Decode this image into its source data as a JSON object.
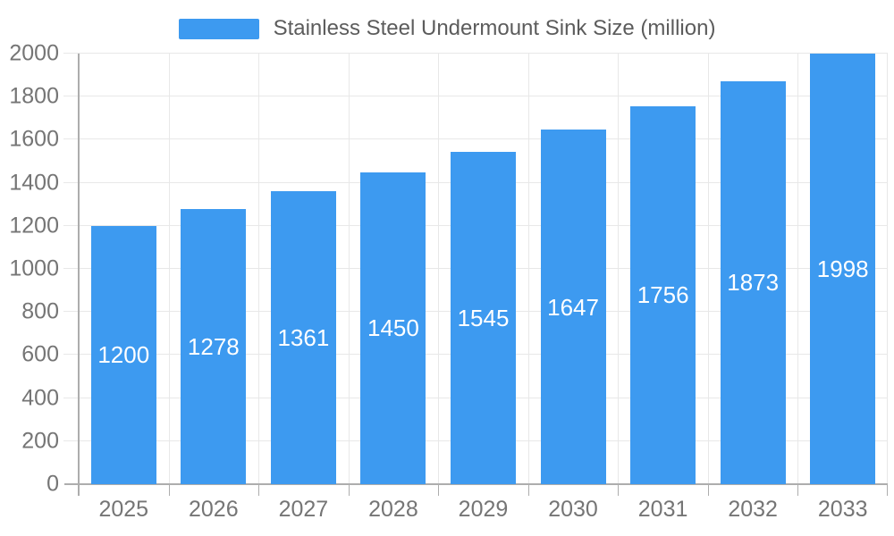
{
  "chart_data": {
    "type": "bar",
    "title": "Stainless Steel Undermount Sink Size (million)",
    "legend": {
      "position": "top",
      "entries": [
        "Stainless Steel Undermount Sink Size (million)"
      ]
    },
    "categories": [
      "2025",
      "2026",
      "2027",
      "2028",
      "2029",
      "2030",
      "2031",
      "2032",
      "2033"
    ],
    "values": [
      1200,
      1278,
      1361,
      1450,
      1545,
      1647,
      1756,
      1873,
      1998
    ],
    "series": [
      {
        "name": "Stainless Steel Undermount Sink Size (million)",
        "values": [
          1200,
          1278,
          1361,
          1450,
          1545,
          1647,
          1756,
          1873,
          1998
        ]
      }
    ],
    "xlabel": "",
    "ylabel": "",
    "ylim": [
      0,
      2000
    ],
    "ytick_step": 200,
    "ytick_labels": [
      "0",
      "200",
      "400",
      "600",
      "800",
      "1000",
      "1200",
      "1400",
      "1600",
      "1800",
      "2000"
    ],
    "grid": true,
    "bar_labels_inside": true,
    "colors": {
      "bar": "#3D9AF0",
      "bar_label": "#FFFFFF",
      "grid_line": "#E8E8E8",
      "axis_line": "#ADADAD",
      "tick_mark": "#ADADAD",
      "tick_label": "#757575",
      "legend_text": "#5C5C5C",
      "background": "#FFFFFF"
    }
  }
}
